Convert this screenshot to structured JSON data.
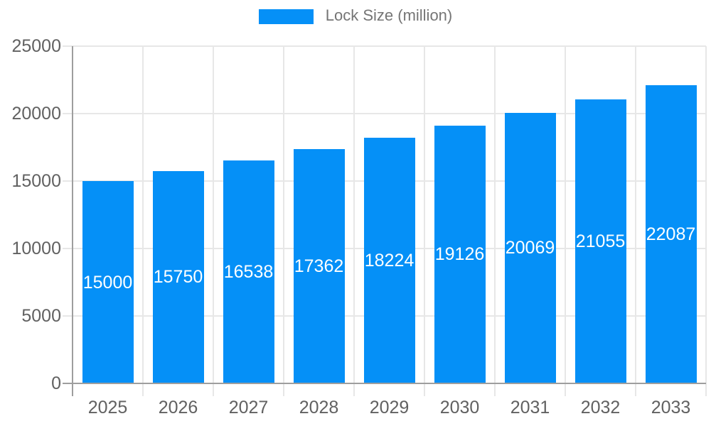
{
  "chart_data": {
    "type": "bar",
    "title": "",
    "legend_label": "Lock Size (million)",
    "legend_position": "top",
    "categories": [
      "2025",
      "2026",
      "2027",
      "2028",
      "2029",
      "2030",
      "2031",
      "2032",
      "2033"
    ],
    "series": [
      {
        "name": "Lock Size (million)",
        "values": [
          15000,
          15750,
          16538,
          17362,
          18224,
          19126,
          20069,
          21055,
          22087
        ]
      }
    ],
    "value_labels": [
      "15000",
      "15750",
      "16538",
      "17362",
      "18224",
      "19126",
      "20069",
      "21055",
      "22087"
    ],
    "xlabel": "",
    "ylabel": "",
    "ylim": [
      0,
      25000
    ],
    "yticks": [
      0,
      5000,
      10000,
      15000,
      20000,
      25000
    ],
    "ytick_labels": [
      "0",
      "5000",
      "10000",
      "15000",
      "20000",
      "25000"
    ],
    "grid": true,
    "colors": {
      "bar": "#0590f7",
      "value_label": "#ffffff",
      "grid_line": "#e7e7e7",
      "axis_line": "#9e9e9e",
      "tick_label": "#616161",
      "legend_text": "#757575",
      "background": "#ffffff"
    }
  }
}
